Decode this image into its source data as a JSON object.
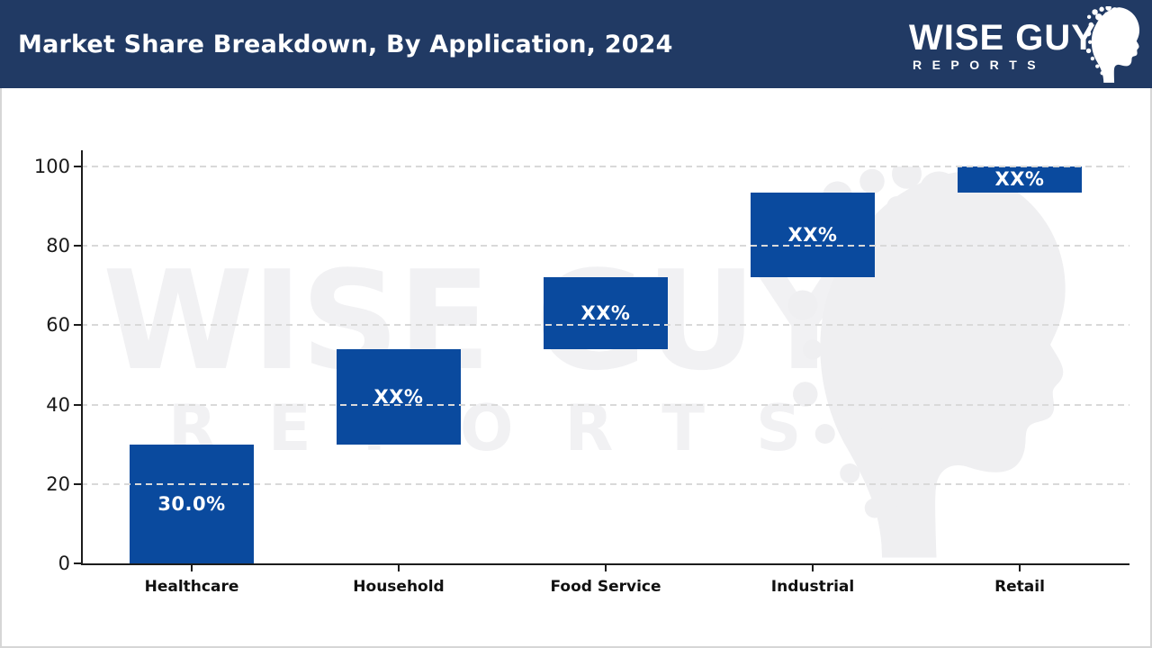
{
  "header": {
    "title": "Market Share Breakdown, By Application, 2024",
    "bg_color": "#213a64",
    "logo": {
      "wordmark": "WISE GUY",
      "subtext": "REPORTS"
    }
  },
  "watermark": {
    "line1": "WISE GUY",
    "line2": "REPORTS"
  },
  "chart_data": {
    "type": "bar",
    "subtype": "floating-segment-waterfall",
    "title": "Market Share Breakdown, By Application, 2024",
    "categories": [
      "Healthcare",
      "Household",
      "Food Service",
      "Industrial",
      "Retail"
    ],
    "segments": [
      {
        "category": "Healthcare",
        "start": 0,
        "end": 30,
        "label": "30.0%"
      },
      {
        "category": "Household",
        "start": 30,
        "end": 54,
        "label": "XX%"
      },
      {
        "category": "Food Service",
        "start": 54,
        "end": 72,
        "label": "XX%"
      },
      {
        "category": "Industrial",
        "start": 72,
        "end": 93.5,
        "label": "XX%"
      },
      {
        "category": "Retail",
        "start": 93.5,
        "end": 100,
        "label": "XX%"
      }
    ],
    "yticks": [
      0,
      20,
      40,
      60,
      80,
      100
    ],
    "ylim": [
      0,
      104
    ],
    "xlabel": "",
    "ylabel": "",
    "bar_color": "#0a4a9e",
    "bar_label_color": "#ffffff",
    "axis_color": "#1c1c1c",
    "grid": {
      "horizontal": true,
      "style": "dashed",
      "color": "#d9d9d9"
    },
    "legend": "none"
  }
}
